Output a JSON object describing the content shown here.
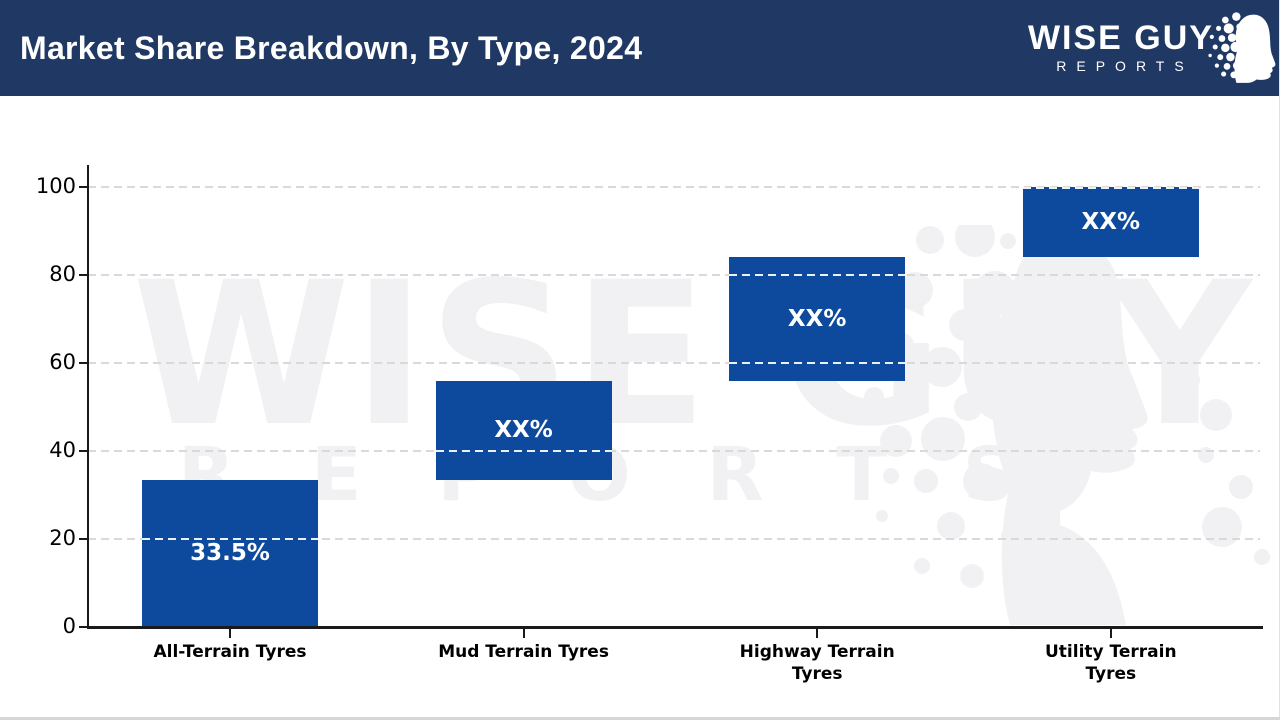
{
  "header": {
    "title": "Market Share Breakdown, By Type, 2024",
    "brand": {
      "name_line1": "WISE GUY",
      "name_line2": "REPORTS"
    },
    "colors": {
      "header_bg": "#1f3864",
      "header_text": "#ffffff"
    }
  },
  "watermark": {
    "line1": "WISE GUY",
    "line2": "REPORTS"
  },
  "chart_data": {
    "type": "bar",
    "subtype": "floating-waterfall",
    "title": "Market Share Breakdown, By Type, 2024",
    "categories": [
      "All-Terrain Tyres",
      "Mud Terrain Tyres",
      "Highway Terrain\nTyres",
      "Utility Terrain\nTyres"
    ],
    "bars": [
      {
        "category": "All-Terrain Tyres",
        "start": 0,
        "end": 33.5,
        "label": "33.5%"
      },
      {
        "category": "Mud Terrain Tyres",
        "start": 33.5,
        "end": 56,
        "label": "XX%"
      },
      {
        "category": "Highway Terrain Tyres",
        "start": 56,
        "end": 84,
        "label": "XX%"
      },
      {
        "category": "Utility Terrain Tyres",
        "start": 84,
        "end": 100,
        "label": "XX%"
      }
    ],
    "y_axis": {
      "ticks": [
        0,
        20,
        40,
        60,
        80,
        100
      ],
      "lim": [
        0,
        100
      ]
    },
    "xlabel": "",
    "ylabel": "",
    "legend": null,
    "grid": {
      "horizontal": true,
      "style": "dashed"
    },
    "colors": {
      "bar": "#0d4a9e",
      "bar_label": "#ffffff",
      "gridline": "#d9d9d9",
      "axis": "#1a1a1a"
    }
  }
}
